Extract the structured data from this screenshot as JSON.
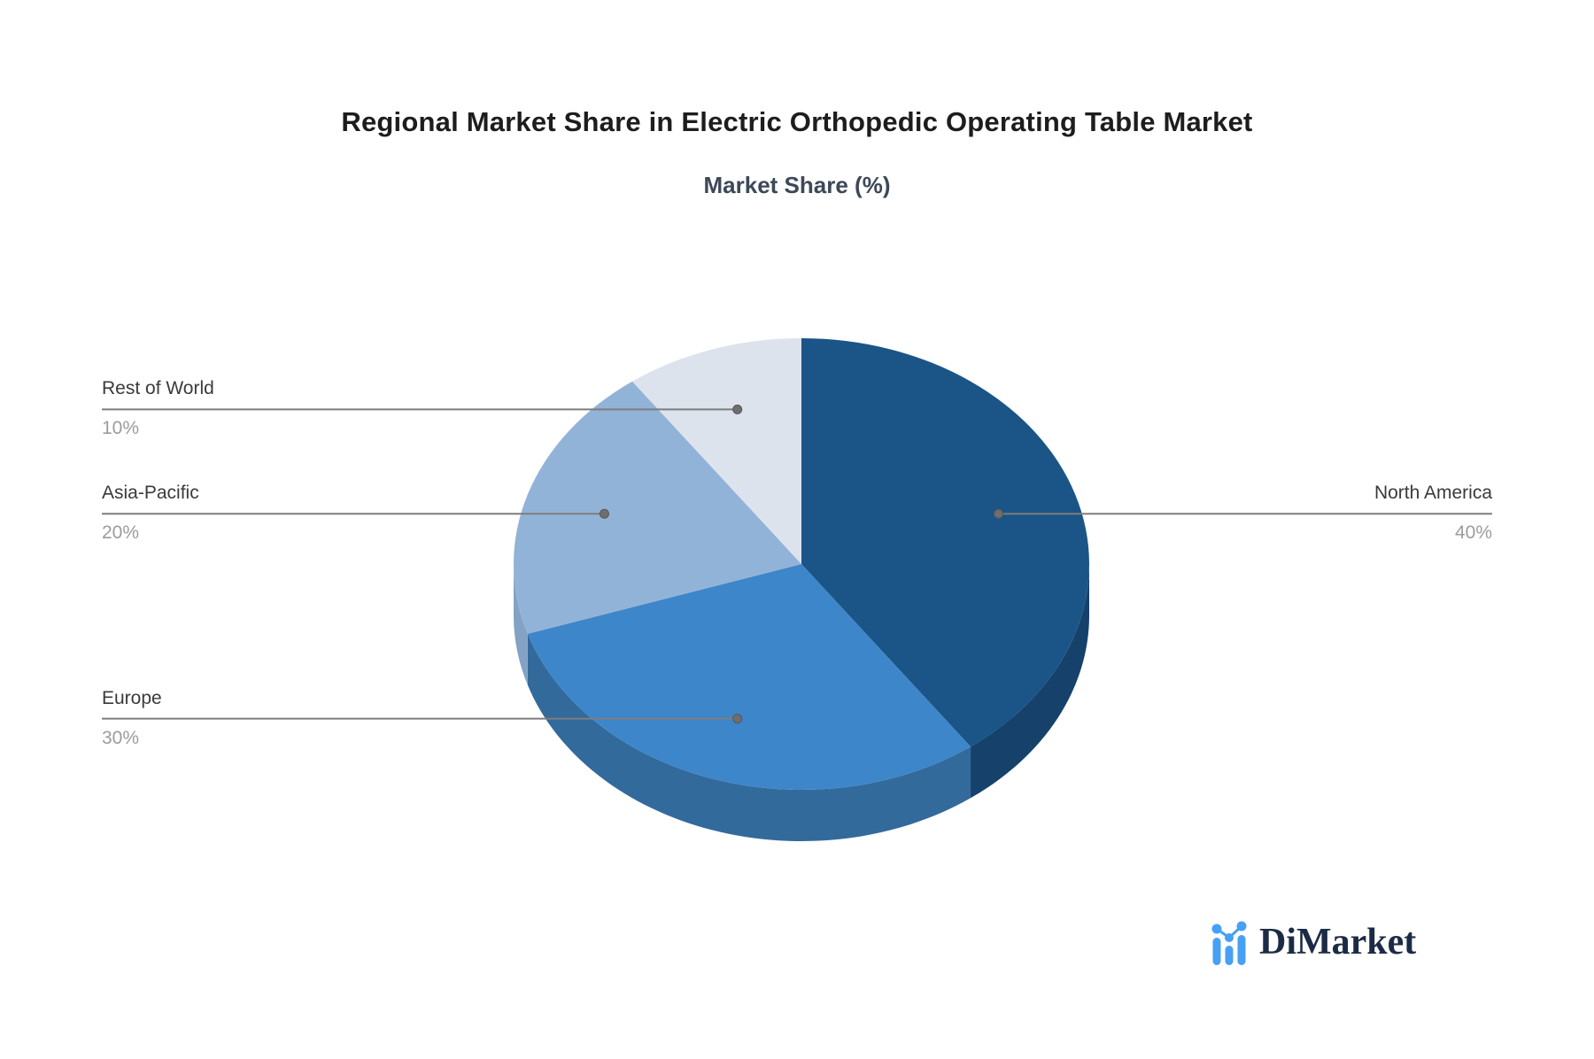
{
  "chart_data": {
    "type": "pie",
    "style": "3d-pie",
    "title": "Regional Market Share in Electric Orthopedic Operating Table Market",
    "subtitle": "Market Share (%)",
    "unit": "%",
    "start_angle": "top",
    "direction": "clockwise",
    "legend_position": "none",
    "leader_line_color": "#7d7d7d",
    "slices": [
      {
        "label": "North America",
        "value": 40,
        "pct_label": "40%",
        "color": "#1b5587",
        "side_color": "#16416b",
        "label_side": "right"
      },
      {
        "label": "Europe",
        "value": 30,
        "pct_label": "30%",
        "color": "#3d86c9",
        "side_color": "#336a9c",
        "label_side": "left"
      },
      {
        "label": "Asia-Pacific",
        "value": 20,
        "pct_label": "20%",
        "color": "#92b3d8",
        "side_color": "#83a2c4",
        "label_side": "left"
      },
      {
        "label": "Rest of World",
        "value": 10,
        "pct_label": "10%",
        "color": "#dde3ed",
        "label_side": "left"
      }
    ]
  },
  "logo": {
    "text": "DiMarket",
    "icon_color": "#47a0f4",
    "text_color": "#1c2b45"
  }
}
